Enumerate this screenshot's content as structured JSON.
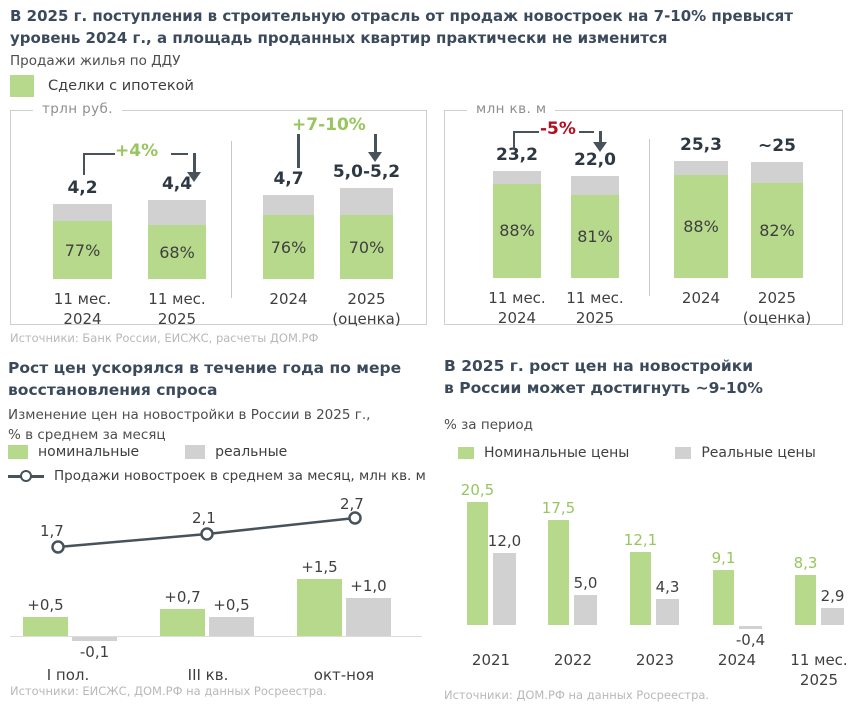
{
  "page": {
    "title": "В 2025 г. поступления в строительную отрасль от продаж новостроек на 7-10% превысят уровень 2024 г., а площадь проданных квартир практически не изменится",
    "subtitle": "Продажи жилья по ДДУ",
    "legend_mortgage": "Сделки с ипотекой"
  },
  "colors": {
    "bar_green": "#b7d98b",
    "bar_gray": "#d1d1d1",
    "green_text": "#97c65f",
    "red_text": "#b50d1f",
    "dark_line": "#47525a",
    "title_text": "#3b4a5b",
    "source_text": "#b8b8b8"
  },
  "chart_data": [
    {
      "type": "bar",
      "id": "revenue",
      "unit": "трлн руб.",
      "legend": "Сделки с ипотекой",
      "bars": [
        {
          "category": "11 мес.\n2024",
          "total": 4.2,
          "total_label": "4,2",
          "share_pct": 77,
          "share_label": "77%"
        },
        {
          "category": "11 мес.\n2025",
          "total": 4.4,
          "total_label": "4,4",
          "share_pct": 68,
          "share_label": "68%"
        },
        {
          "category": "2024",
          "total": 4.7,
          "total_label": "4,7",
          "share_pct": 76,
          "share_label": "76%"
        },
        {
          "category": "2025\n(оценка)",
          "total": 5.1,
          "total_label": "5,0-5,2",
          "share_pct": 70,
          "share_label": "70%"
        }
      ],
      "annotations": [
        {
          "text": "+4%",
          "color": "green"
        },
        {
          "text": "+7-10%",
          "color": "green"
        }
      ],
      "source": "Источники: Банк России, ЕИСЖС, расчеты ДОМ.РФ"
    },
    {
      "type": "bar",
      "id": "area",
      "unit": "млн кв. м",
      "legend": "Сделки с ипотекой",
      "bars": [
        {
          "category": "11 мес.\n2024",
          "total": 23.2,
          "total_label": "23,2",
          "share_pct": 88,
          "share_label": "88%"
        },
        {
          "category": "11 мес.\n2025",
          "total": 22.0,
          "total_label": "22,0",
          "share_pct": 81,
          "share_label": "81%"
        },
        {
          "category": "2024",
          "total": 25.3,
          "total_label": "25,3",
          "share_pct": 88,
          "share_label": "88%"
        },
        {
          "category": "2025\n(оценка)",
          "total": 25.0,
          "total_label": "~25",
          "share_pct": 82,
          "share_label": "82%"
        }
      ],
      "annotations": [
        {
          "text": "-5%",
          "color": "red"
        }
      ],
      "source": ""
    },
    {
      "type": "bar+line",
      "id": "monthly-price-growth",
      "title": "Рост цен ускорялся в течение года по мере\nвосстановления спроса",
      "subtitle": "Изменение цен на новостройки в России в 2025 г.,\n% в среднем за месяц",
      "legend": [
        "номинальные",
        "реальные"
      ],
      "line_legend": "Продажи новостроек в среднем за месяц, млн кв. м",
      "categories": [
        "I пол.",
        "III кв.",
        "окт-ноя"
      ],
      "series": [
        {
          "name": "номинальные",
          "values": [
            0.5,
            0.7,
            1.5
          ],
          "labels": [
            "+0,5",
            "+0,7",
            "+1,5"
          ]
        },
        {
          "name": "реальные",
          "values": [
            -0.1,
            0.5,
            1.0
          ],
          "labels": [
            "-0,1",
            "+0,5",
            "+1,0"
          ]
        }
      ],
      "line": {
        "name": "Продажи новостроек в среднем за месяц, млн кв. м",
        "values": [
          1.7,
          2.1,
          2.7
        ],
        "labels": [
          "1,7",
          "2,1",
          "2,7"
        ]
      },
      "source": "Источники: ЕИСЖС, ДОМ.РФ на данных Росреестра."
    },
    {
      "type": "bar",
      "id": "annual-price-growth",
      "title": "В 2025 г. рост цен на новостройки\nв России может достигнуть ~9-10%",
      "subtitle": "%  за период",
      "legend": [
        "Номинальные цены",
        "Реальные цены"
      ],
      "categories": [
        "2021",
        "2022",
        "2023",
        "2024",
        "11 мес.\n2025"
      ],
      "series": [
        {
          "name": "Номинальные цены",
          "values": [
            20.5,
            17.5,
            12.1,
            9.1,
            8.3
          ],
          "labels": [
            "20,5",
            "17,5",
            "12,1",
            "9,1",
            "8,3"
          ]
        },
        {
          "name": "Реальные цены",
          "values": [
            12.0,
            5.0,
            4.3,
            -0.4,
            2.9
          ],
          "labels": [
            "12,0",
            "5,0",
            "4,3",
            "-0,4",
            "2,9"
          ]
        }
      ],
      "source": "Источники: ДОМ.РФ на данных Росреестра."
    }
  ]
}
